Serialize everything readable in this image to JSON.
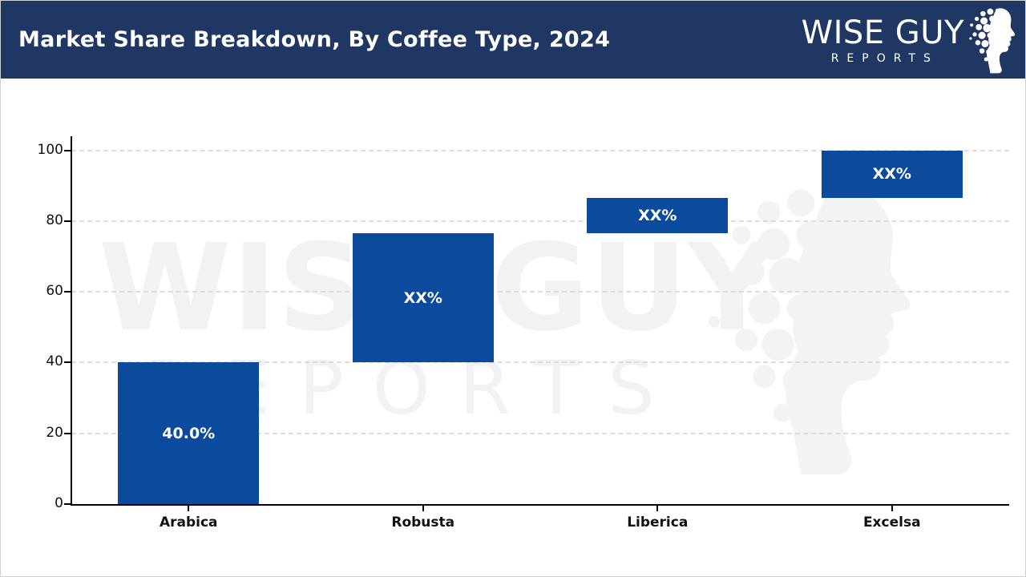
{
  "header": {
    "title": "Market Share Breakdown, By Coffee Type, 2024",
    "bg_color": "#203764",
    "logo": {
      "line1": "WISE GUY",
      "line2": "REPORTS"
    }
  },
  "watermark": {
    "line1": "WISE GUY",
    "line2": "REPORTS"
  },
  "chart_data": {
    "type": "bar",
    "subtype": "waterfall",
    "title": "Market Share Breakdown, By Coffee Type, 2024",
    "categories": [
      "Arabica",
      "Robusta",
      "Liberica",
      "Excelsa"
    ],
    "bars": [
      {
        "category": "Arabica",
        "start": 0,
        "end": 40,
        "value": 40.0,
        "label": "40.0%"
      },
      {
        "category": "Robusta",
        "start": 40,
        "end": 76.5,
        "value": 36.5,
        "label": "XX%"
      },
      {
        "category": "Liberica",
        "start": 76.5,
        "end": 86.5,
        "value": 10.0,
        "label": "XX%"
      },
      {
        "category": "Excelsa",
        "start": 86.5,
        "end": 100,
        "value": 13.5,
        "label": "XX%"
      }
    ],
    "xlabel": "",
    "ylabel": "",
    "ylim": [
      0,
      100
    ],
    "yticks": [
      0,
      20,
      40,
      60,
      80,
      100
    ],
    "grid": "horizontal-dashed",
    "legend": "none",
    "bar_color": "#0b4a9c",
    "bar_label_color": "#ffffff",
    "axis_color": "#000000"
  }
}
